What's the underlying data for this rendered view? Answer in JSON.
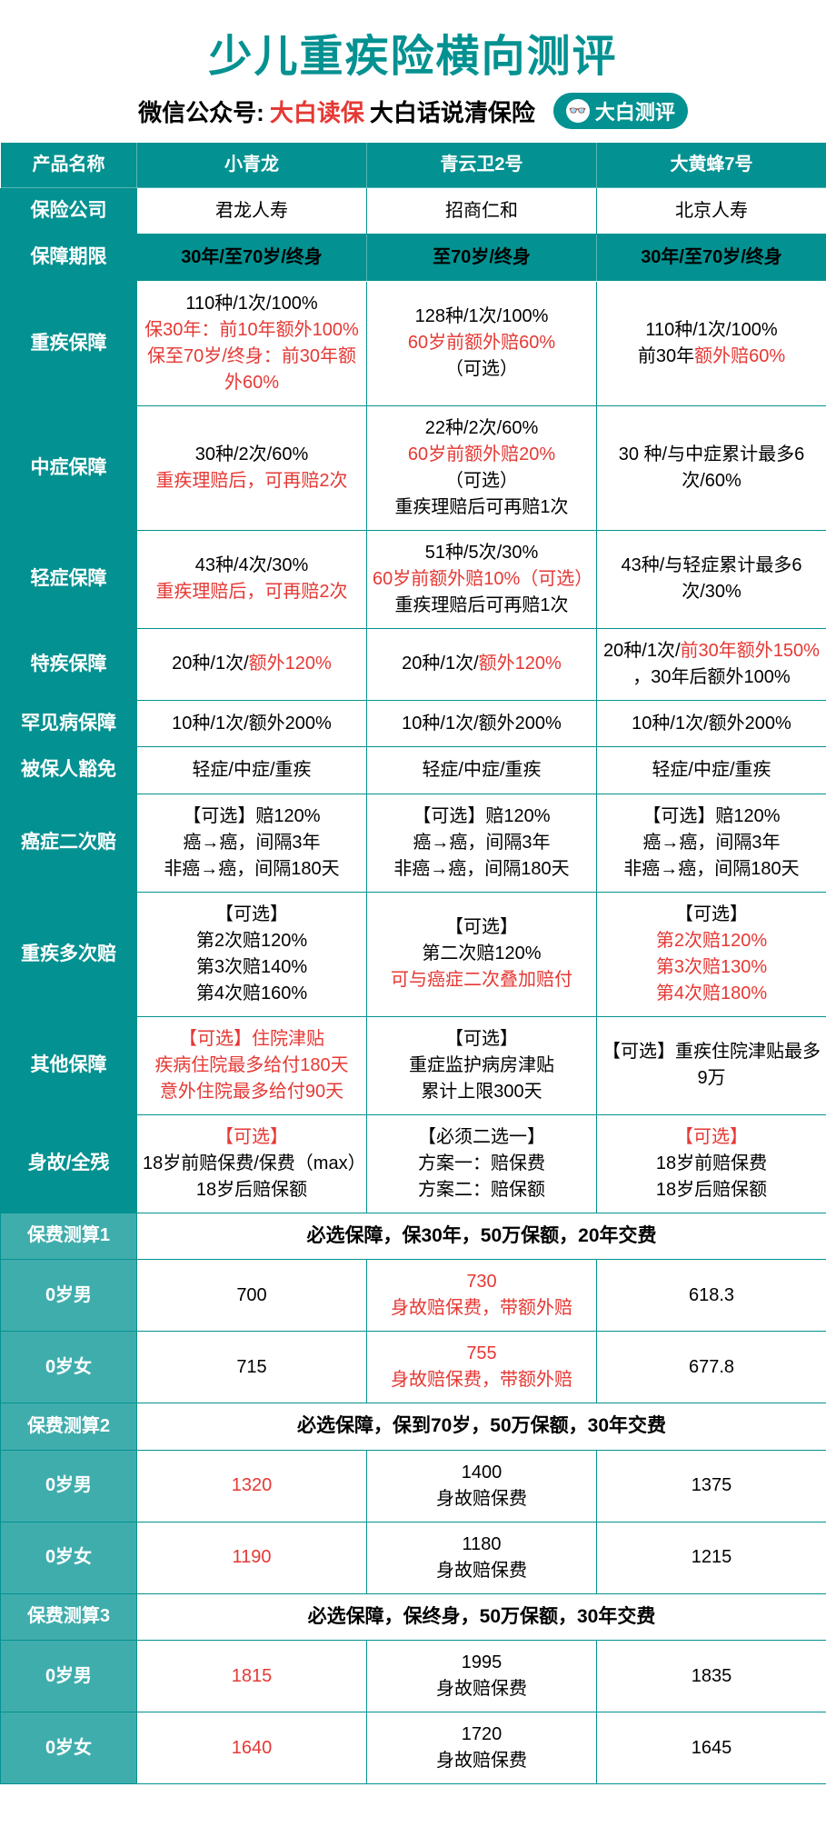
{
  "colors": {
    "primary": "#049191",
    "accent": "#e53935",
    "calcLabel": "#40adad",
    "text": "#000000",
    "white": "#ffffff"
  },
  "typography": {
    "title_fontsize": 48,
    "subtitle_fontsize": 26,
    "cell_fontsize": 20,
    "font_family": "Microsoft YaHei"
  },
  "header": {
    "title": "少儿重疾险横向测评",
    "sub_prefix": "微信公众号:",
    "sub_brand": "大白读保",
    "sub_suffix": "大白话说清保险",
    "badge": "大白测评",
    "badge_icon": "👓"
  },
  "columns": {
    "label": "产品名称",
    "products": [
      "小青龙",
      "青云卫2号",
      "大黄蜂7号"
    ]
  },
  "rows": [
    {
      "label": "保险公司",
      "c1": [
        {
          "t": "君龙人寿",
          "red": false
        }
      ],
      "c2": [
        {
          "t": "招商仁和",
          "red": false
        }
      ],
      "c3": [
        {
          "t": "北京人寿",
          "red": false
        }
      ]
    },
    {
      "label": "保障期限",
      "header_style": true,
      "c1": [
        {
          "t": "30年/至70岁/终身",
          "red": false
        }
      ],
      "c2": [
        {
          "t": "至70岁/终身",
          "red": false
        }
      ],
      "c3": [
        {
          "t": "30年/至70岁/终身",
          "red": false
        }
      ]
    },
    {
      "label": "重疾保障",
      "c1": [
        {
          "t": "110种/1次/100%",
          "red": false
        },
        {
          "t": "保30年：前10年额外100%",
          "red": true
        },
        {
          "t": "保至70岁/终身：前30年额外60%",
          "red": true
        }
      ],
      "c2": [
        {
          "t": "128种/1次/100%",
          "red": false
        },
        {
          "t": "60岁前额外赔60%",
          "red": true
        },
        {
          "t": "（可选）",
          "red": false
        }
      ],
      "c3": [
        {
          "t": "110种/1次/100%",
          "red": false
        },
        {
          "t": "前30年",
          "red": false,
          "inline_next": true
        },
        {
          "t": "额外赔60%",
          "red": true
        }
      ]
    },
    {
      "label": "中症保障",
      "c1": [
        {
          "t": "30种/2次/60%",
          "red": false
        },
        {
          "t": "重疾理赔后，可再赔2次",
          "red": true
        }
      ],
      "c2": [
        {
          "t": "22种/2次/60%",
          "red": false
        },
        {
          "t": "60岁前额外赔20%",
          "red": true
        },
        {
          "t": "（可选）",
          "red": false
        },
        {
          "t": "重疾理赔后可再赔1次",
          "red": false
        }
      ],
      "c3": [
        {
          "t": "30 种/与中症累计最多6次/60%",
          "red": false
        }
      ]
    },
    {
      "label": "轻症保障",
      "c1": [
        {
          "t": "43种/4次/30%",
          "red": false
        },
        {
          "t": "重疾理赔后，可再赔2次",
          "red": true
        }
      ],
      "c2": [
        {
          "t": "51种/5次/30%",
          "red": false
        },
        {
          "t": "60岁前额外赔10%（可选）",
          "red": true
        },
        {
          "t": "重疾理赔后可再赔1次",
          "red": false
        }
      ],
      "c3": [
        {
          "t": "43种/与轻症累计最多6次/30%",
          "red": false
        }
      ]
    },
    {
      "label": "特疾保障",
      "c1": [
        {
          "t": "20种/1次/",
          "red": false,
          "inline_next": true
        },
        {
          "t": "额外120%",
          "red": true
        }
      ],
      "c2": [
        {
          "t": "20种/1次/",
          "red": false,
          "inline_next": true
        },
        {
          "t": "额外120%",
          "red": true
        }
      ],
      "c3": [
        {
          "t": "20种/1次/",
          "red": false,
          "inline_next": true
        },
        {
          "t": "前30年额外150%",
          "red": true
        },
        {
          "t": "，30年后额外100%",
          "red": false
        }
      ]
    },
    {
      "label": "罕见病保障",
      "c1": [
        {
          "t": "10种/1次/额外200%",
          "red": false
        }
      ],
      "c2": [
        {
          "t": "10种/1次/额外200%",
          "red": false
        }
      ],
      "c3": [
        {
          "t": "10种/1次/额外200%",
          "red": false
        }
      ]
    },
    {
      "label": "被保人豁免",
      "c1": [
        {
          "t": "轻症/中症/重疾",
          "red": false
        }
      ],
      "c2": [
        {
          "t": "轻症/中症/重疾",
          "red": false
        }
      ],
      "c3": [
        {
          "t": "轻症/中症/重疾",
          "red": false
        }
      ]
    },
    {
      "label": "癌症二次赔",
      "c1": [
        {
          "t": "【可选】赔120%",
          "red": false
        },
        {
          "t": "癌→癌，间隔3年",
          "red": false
        },
        {
          "t": "非癌→癌，间隔180天",
          "red": false
        }
      ],
      "c2": [
        {
          "t": "【可选】赔120%",
          "red": false
        },
        {
          "t": "癌→癌，间隔3年",
          "red": false
        },
        {
          "t": "非癌→癌，间隔180天",
          "red": false
        }
      ],
      "c3": [
        {
          "t": "【可选】赔120%",
          "red": false
        },
        {
          "t": "癌→癌，间隔3年",
          "red": false
        },
        {
          "t": "非癌→癌，间隔180天",
          "red": false
        }
      ]
    },
    {
      "label": "重疾多次赔",
      "c1": [
        {
          "t": "【可选】",
          "red": false
        },
        {
          "t": "第2次赔120%",
          "red": false
        },
        {
          "t": "第3次赔140%",
          "red": false
        },
        {
          "t": "第4次赔160%",
          "red": false
        }
      ],
      "c2": [
        {
          "t": "【可选】",
          "red": false
        },
        {
          "t": "第二次赔120%",
          "red": false
        },
        {
          "t": "可与癌症二次叠加赔付",
          "red": true
        }
      ],
      "c3": [
        {
          "t": "【可选】",
          "red": false
        },
        {
          "t": "第2次赔120%",
          "red": true
        },
        {
          "t": "第3次赔130%",
          "red": true
        },
        {
          "t": "第4次赔180%",
          "red": true
        }
      ]
    },
    {
      "label": "其他保障",
      "c1": [
        {
          "t": "【可选】住院津贴",
          "red": true
        },
        {
          "t": "疾病住院最多给付180天",
          "red": true
        },
        {
          "t": "意外住院最多给付90天",
          "red": true
        }
      ],
      "c2": [
        {
          "t": "【可选】",
          "red": false
        },
        {
          "t": "重症监护病房津贴",
          "red": false
        },
        {
          "t": "累计上限300天",
          "red": false
        }
      ],
      "c3": [
        {
          "t": "【可选】重疾住院津贴最多9万",
          "red": false
        }
      ]
    },
    {
      "label": "身故/全残",
      "c1": [
        {
          "t": "【可选】",
          "red": true
        },
        {
          "t": "18岁前赔保费/保费（max）",
          "red": false
        },
        {
          "t": "18岁后赔保额",
          "red": false
        }
      ],
      "c2": [
        {
          "t": "【必须二选一】",
          "red": false
        },
        {
          "t": "方案一：赔保费",
          "red": false
        },
        {
          "t": "方案二：赔保额",
          "red": false
        }
      ],
      "c3": [
        {
          "t": "【可选】",
          "red": true
        },
        {
          "t": "18岁前赔保费",
          "red": false
        },
        {
          "t": "18岁后赔保额",
          "red": false
        }
      ]
    }
  ],
  "calcs": [
    {
      "label": "保费测算1",
      "desc": "必选保障，保30年，50万保额，20年交费",
      "rows": [
        {
          "label": "0岁男",
          "c1": [
            {
              "t": "700",
              "red": false
            }
          ],
          "c2": [
            {
              "t": "730",
              "red": true
            },
            {
              "t": "身故赔保费，带额外赔",
              "red": true
            }
          ],
          "c3": [
            {
              "t": "618.3",
              "red": false
            }
          ]
        },
        {
          "label": "0岁女",
          "c1": [
            {
              "t": "715",
              "red": false
            }
          ],
          "c2": [
            {
              "t": "755",
              "red": true
            },
            {
              "t": "身故赔保费，带额外赔",
              "red": true
            }
          ],
          "c3": [
            {
              "t": "677.8",
              "red": false
            }
          ]
        }
      ]
    },
    {
      "label": "保费测算2",
      "desc": "必选保障，保到70岁，50万保额，30年交费",
      "rows": [
        {
          "label": "0岁男",
          "c1": [
            {
              "t": "1320",
              "red": true
            }
          ],
          "c2": [
            {
              "t": "1400",
              "red": false
            },
            {
              "t": "身故赔保费",
              "red": false
            }
          ],
          "c3": [
            {
              "t": "1375",
              "red": false
            }
          ]
        },
        {
          "label": "0岁女",
          "c1": [
            {
              "t": "1190",
              "red": true
            }
          ],
          "c2": [
            {
              "t": "1180",
              "red": false
            },
            {
              "t": "身故赔保费",
              "red": false
            }
          ],
          "c3": [
            {
              "t": "1215",
              "red": false
            }
          ]
        }
      ]
    },
    {
      "label": "保费测算3",
      "desc": "必选保障，保终身，50万保额，30年交费",
      "rows": [
        {
          "label": "0岁男",
          "c1": [
            {
              "t": "1815",
              "red": true
            }
          ],
          "c2": [
            {
              "t": "1995",
              "red": false
            },
            {
              "t": "身故赔保费",
              "red": false
            }
          ],
          "c3": [
            {
              "t": "1835",
              "red": false
            }
          ]
        },
        {
          "label": "0岁女",
          "c1": [
            {
              "t": "1640",
              "red": true
            }
          ],
          "c2": [
            {
              "t": "1720",
              "red": false
            },
            {
              "t": "身故赔保费",
              "red": false
            }
          ],
          "c3": [
            {
              "t": "1645",
              "red": false
            }
          ]
        }
      ]
    }
  ]
}
